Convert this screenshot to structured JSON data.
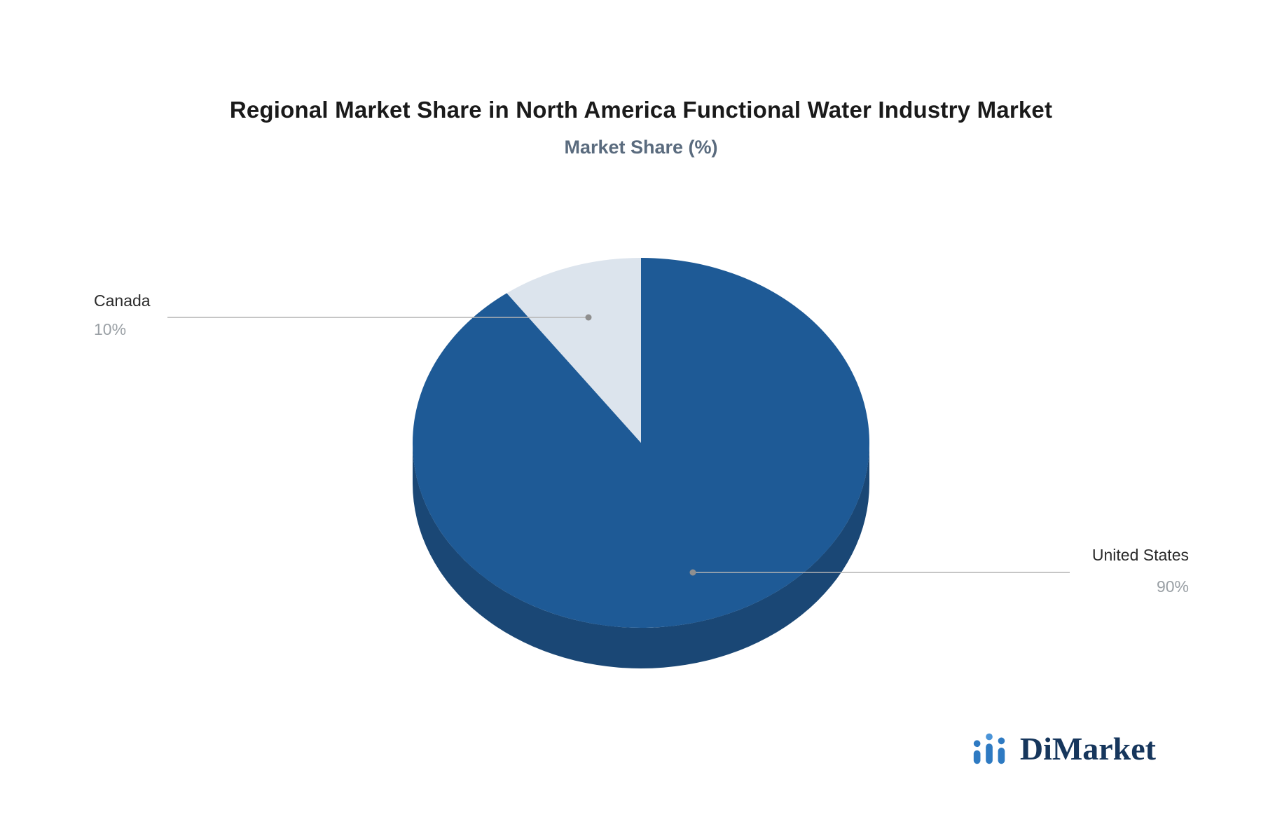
{
  "chart_data": {
    "type": "pie",
    "title": "Regional Market Share in North America Functional Water Industry Market",
    "subtitle": "Market Share (%)",
    "categories": [
      "United States",
      "Canada"
    ],
    "values": [
      90,
      10
    ],
    "segments": [
      {
        "label": "United States",
        "value": 90,
        "display": "90%",
        "color": "#1e5a96"
      },
      {
        "label": "Canada",
        "value": 10,
        "display": "10%",
        "color": "#dce4ed"
      }
    ],
    "depth_color": "#1a4775",
    "start_angle_deg": -90,
    "direction": "clockwise",
    "style": "3d-pie",
    "legend_position": "none",
    "label_name_color": "#2b2b2b",
    "label_value_color": "#9aa0a5"
  },
  "branding": {
    "logo_text": "DiMarket",
    "logo_icon": "bar-chart-icon",
    "logo_text_color": "#16365c",
    "logo_icon_color": "#2e7ac2"
  }
}
